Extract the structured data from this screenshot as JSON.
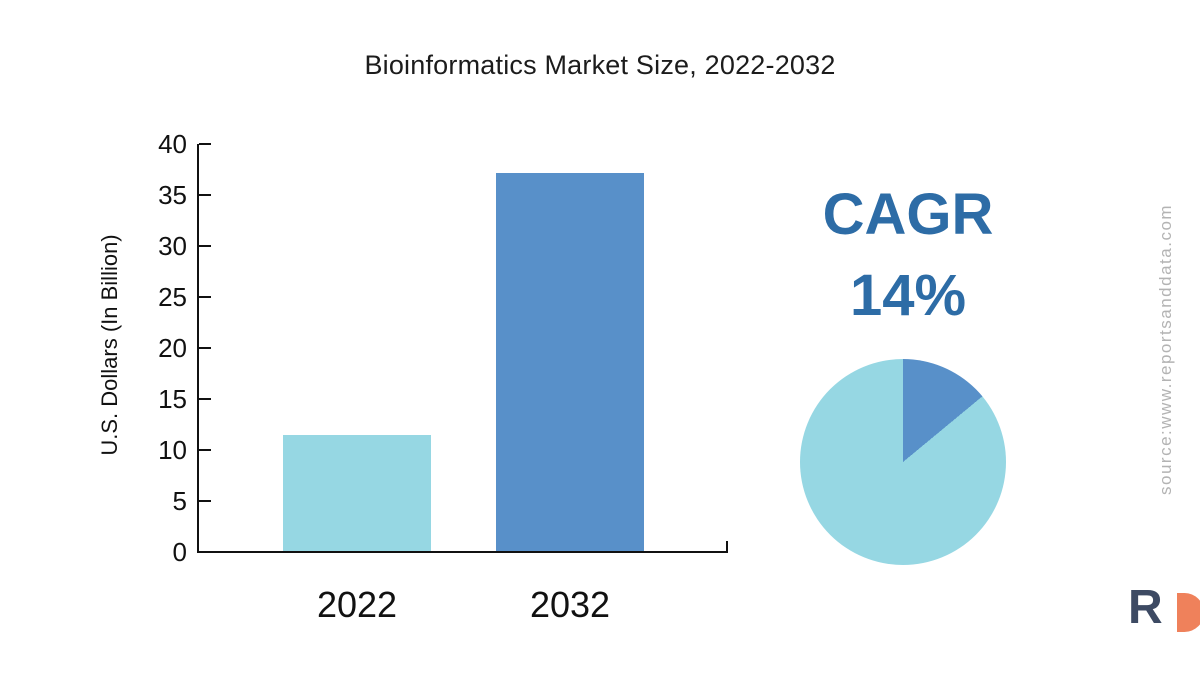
{
  "title": "Bioinformatics Market Size, 2022-2032",
  "chart_data": [
    {
      "type": "bar",
      "title": "Bioinformatics Market Size, 2022-2032",
      "categories": [
        "2022",
        "2032"
      ],
      "values": [
        11.4,
        37.2
      ],
      "xlabel": "",
      "ylabel": "U.S. Dollars (In Billion)",
      "ylim": [
        0,
        40
      ],
      "yticks": [
        0,
        5,
        10,
        15,
        20,
        25,
        30,
        35,
        40
      ],
      "grid": false,
      "legend_position": "none",
      "bar_colors": [
        "#96d7e3",
        "#5890c9"
      ]
    },
    {
      "type": "pie",
      "labels": [
        "CAGR 14%",
        "Remainder"
      ],
      "values": [
        14,
        86
      ],
      "colors": [
        "#5890c9",
        "#96d7e3"
      ],
      "start_angle_deg": 90,
      "direction": "clockwise",
      "legend_position": "none"
    }
  ],
  "annotations": {
    "cagr_label": "CAGR",
    "cagr_value": "14%"
  },
  "source_text": "source:www.reportsanddata.com",
  "logo": {
    "r_text": "R"
  },
  "colors": {
    "bar_2022": "#96d7e3",
    "bar_2032": "#5890c9",
    "cagr_text": "#2d6ca6",
    "source_text": "#b3b3b3",
    "logo_r": "#3d4a63",
    "logo_d": "#ef815b",
    "axis": "#111111"
  }
}
